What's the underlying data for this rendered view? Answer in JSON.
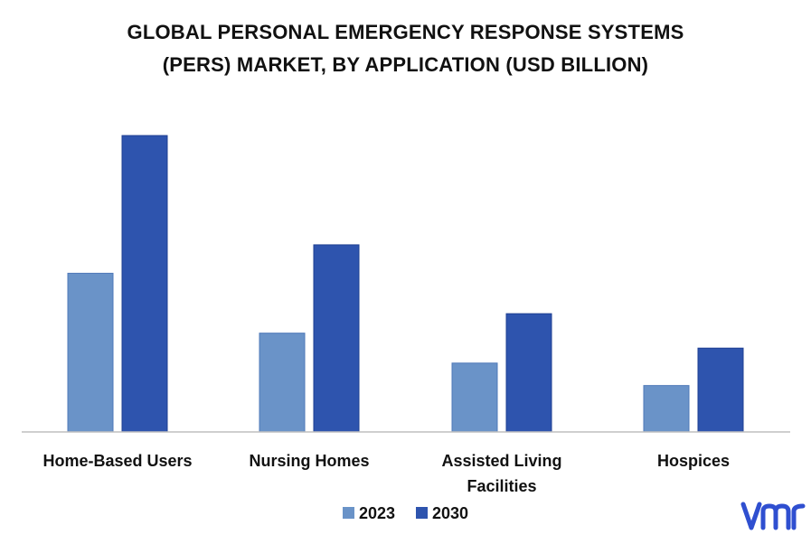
{
  "chart_data": {
    "type": "bar",
    "title_line1": "GLOBAL PERSONAL EMERGENCY RESPONSE SYSTEMS",
    "title_line2": "(PERS) MARKET, BY APPLICATION (USD BILLION)",
    "categories": [
      [
        "Home-Based Users"
      ],
      [
        "Nursing Homes"
      ],
      [
        "Assisted Living",
        "Facilities"
      ],
      [
        "Hospices"
      ]
    ],
    "series": [
      {
        "name": "2023",
        "values": [
          5.3,
          3.3,
          2.3,
          1.55
        ],
        "color": "#6a93c8"
      },
      {
        "name": "2030",
        "values": [
          9.9,
          6.25,
          3.95,
          2.8
        ],
        "color": "#2e54ae"
      }
    ],
    "ylim": [
      0,
      10.5
    ],
    "grid": false,
    "legend": "bottom-center"
  },
  "brand": {
    "logo": "vmr",
    "color": "#2f4fd0"
  }
}
